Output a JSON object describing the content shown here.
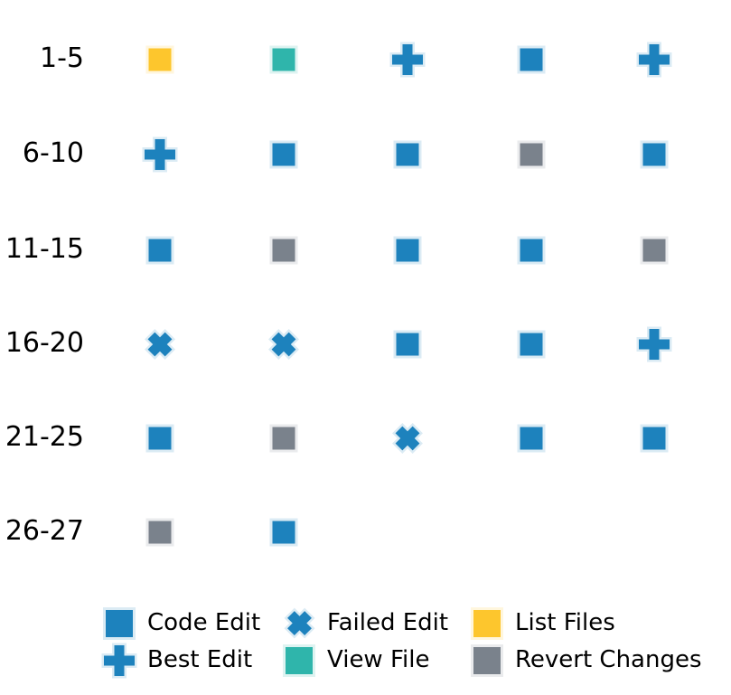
{
  "chart_data": {
    "type": "scatter",
    "title": "",
    "xlabel": "",
    "ylabel": "",
    "grid": false,
    "background": "#ffffff",
    "legend_position": "bottom",
    "row_labels": [
      "1-5",
      "6-10",
      "11-15",
      "16-20",
      "21-25",
      "26-27"
    ],
    "rows": [
      [
        "list_files",
        "view_file",
        "best_edit",
        "code_edit",
        "best_edit"
      ],
      [
        "best_edit",
        "code_edit",
        "code_edit",
        "revert_changes",
        "code_edit"
      ],
      [
        "code_edit",
        "revert_changes",
        "code_edit",
        "code_edit",
        "revert_changes"
      ],
      [
        "failed_edit",
        "failed_edit",
        "code_edit",
        "code_edit",
        "best_edit"
      ],
      [
        "code_edit",
        "revert_changes",
        "failed_edit",
        "code_edit",
        "code_edit"
      ],
      [
        "revert_changes",
        "code_edit"
      ]
    ],
    "legend": [
      {
        "key": "code_edit",
        "label": "Code Edit",
        "marker": "square",
        "color": "#1d82bd"
      },
      {
        "key": "failed_edit",
        "label": "Failed Edit",
        "marker": "x",
        "color": "#1d82bd"
      },
      {
        "key": "list_files",
        "label": "List Files",
        "marker": "square",
        "color": "#fdc62d"
      },
      {
        "key": "best_edit",
        "label": "Best Edit",
        "marker": "plus",
        "color": "#1d82bd"
      },
      {
        "key": "view_file",
        "label": "View File",
        "marker": "square",
        "color": "#2fb5ab"
      },
      {
        "key": "revert_changes",
        "label": "Revert Changes",
        "marker": "square",
        "color": "#7a828c"
      }
    ]
  }
}
